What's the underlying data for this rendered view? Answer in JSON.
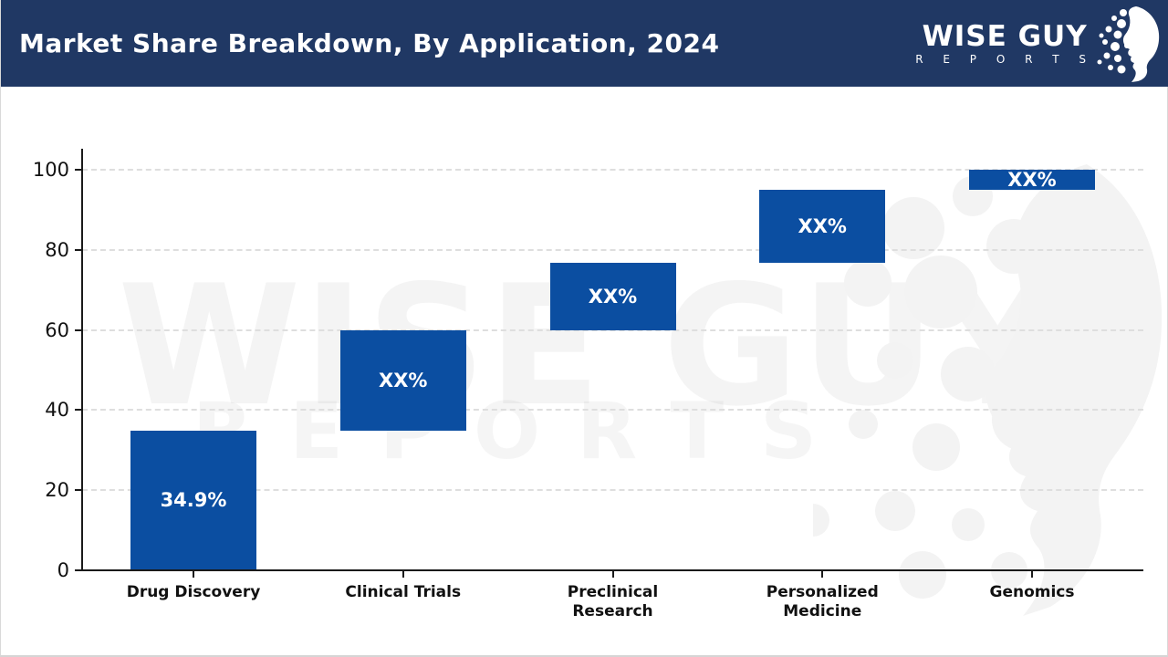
{
  "header": {
    "title": "Market Share Breakdown, By Application, 2024",
    "bg_color": "#203864",
    "brand": {
      "name": "WISE GUY",
      "sub": "R E P O R T S"
    }
  },
  "watermark": {
    "line1": "WISE GUY",
    "line2": "REPORTS"
  },
  "chart_data": {
    "type": "bar",
    "subtype": "waterfall",
    "title": "Market Share Breakdown, By Application, 2024",
    "categories": [
      "Drug Discovery",
      "Clinical Trials",
      "Preclinical Research",
      "Personalized Medicine",
      "Genomics"
    ],
    "segments": [
      {
        "category": "Drug Discovery",
        "start": 0,
        "end": 34.9,
        "label": "34.9%"
      },
      {
        "category": "Clinical Trials",
        "start": 34.9,
        "end": 60.0,
        "label": "XX%"
      },
      {
        "category": "Preclinical Research",
        "start": 60.0,
        "end": 76.7,
        "label": "XX%"
      },
      {
        "category": "Personalized Medicine",
        "start": 76.7,
        "end": 95.0,
        "label": "XX%"
      },
      {
        "category": "Genomics",
        "start": 95.0,
        "end": 100.0,
        "label": "XX%"
      }
    ],
    "yticks": [
      0,
      20,
      40,
      60,
      80,
      100
    ],
    "ylim": [
      0,
      105
    ],
    "bar_color": "#0b4ea1",
    "grid": true,
    "legend": false
  }
}
